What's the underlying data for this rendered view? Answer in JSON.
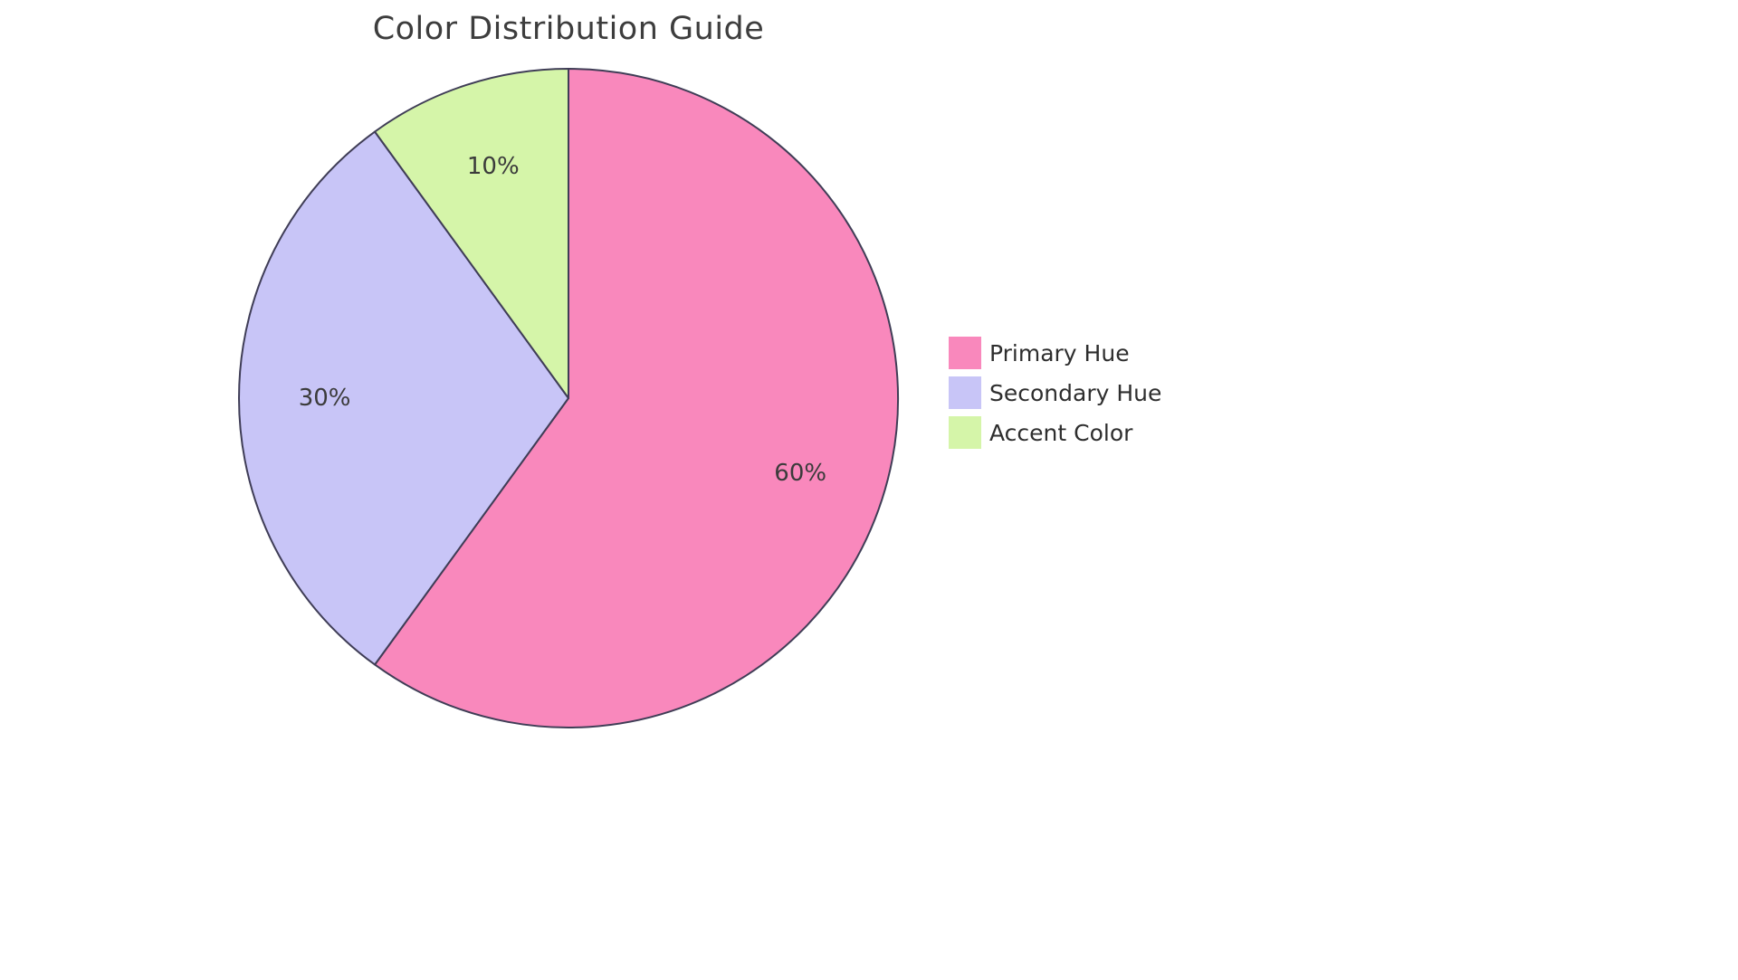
{
  "title": "Color Distribution Guide",
  "chart_data": {
    "type": "pie",
    "title": "Color Distribution Guide",
    "labels": [
      "Primary Hue",
      "Secondary Hue",
      "Accent Color"
    ],
    "values": [
      60,
      30,
      10
    ],
    "percent_labels": [
      "60%",
      "30%",
      "10%"
    ],
    "slice_colors": [
      "#F988BC",
      "#C8C5F7",
      "#D5F5A9"
    ],
    "stroke_color": "#3F3D56",
    "label_color": "#3b3b3b",
    "start_angle_deg": 0,
    "direction": "clockwise",
    "legend_position": "right",
    "label_radius_factor": 0.74
  },
  "legend": {
    "items": [
      {
        "label": "Primary Hue",
        "color": "#F988BC"
      },
      {
        "label": "Secondary Hue",
        "color": "#C8C5F7"
      },
      {
        "label": "Accent Color",
        "color": "#D5F5A9"
      }
    ]
  }
}
